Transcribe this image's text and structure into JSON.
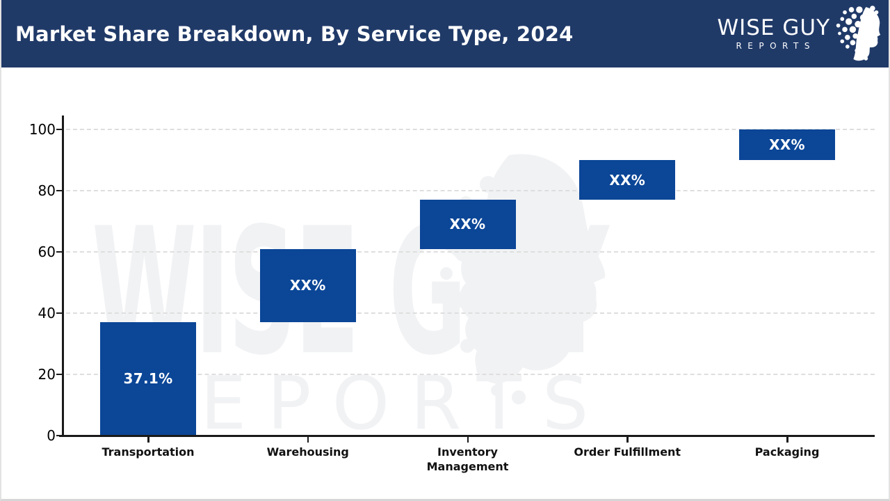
{
  "header": {
    "title": "Market Share Breakdown, By Service Type, 2024",
    "logo": {
      "primary": "WISE GUY",
      "secondary": "REPORTS"
    }
  },
  "watermark": {
    "line1": "WISE GUY",
    "line2": "REPORTS"
  },
  "colors": {
    "header_background": "#203a68",
    "bar_blue": "#0b4697",
    "watermark_gray": "#f1f2f4",
    "axis_black": "#1a1a1a",
    "gridline_gray": "#dedede"
  },
  "chart_data": {
    "type": "bar",
    "subtype": "waterfall",
    "title": "Market Share Breakdown, By Service Type, 2024",
    "categories": [
      "Transportation",
      "Warehousing",
      "Inventory\nManagement",
      "Order Fulfillment",
      "Packaging"
    ],
    "segments": [
      {
        "category": "Transportation",
        "start": 0,
        "end": 37.1,
        "label": "37.1%"
      },
      {
        "category": "Warehousing",
        "start": 37.1,
        "end": 61,
        "label": "XX%"
      },
      {
        "category": "Inventory Management",
        "start": 61,
        "end": 77,
        "label": "XX%"
      },
      {
        "category": "Order Fulfillment",
        "start": 77,
        "end": 90,
        "label": "XX%"
      },
      {
        "category": "Packaging",
        "start": 90,
        "end": 100,
        "label": "XX%"
      }
    ],
    "ylim": [
      0,
      100
    ],
    "yticks": [
      0,
      20,
      40,
      60,
      80,
      100
    ],
    "grid": "horizontal-dashed",
    "legend": "none",
    "bar_color": "#0b4697",
    "bar_label_color": "#ffffff"
  }
}
